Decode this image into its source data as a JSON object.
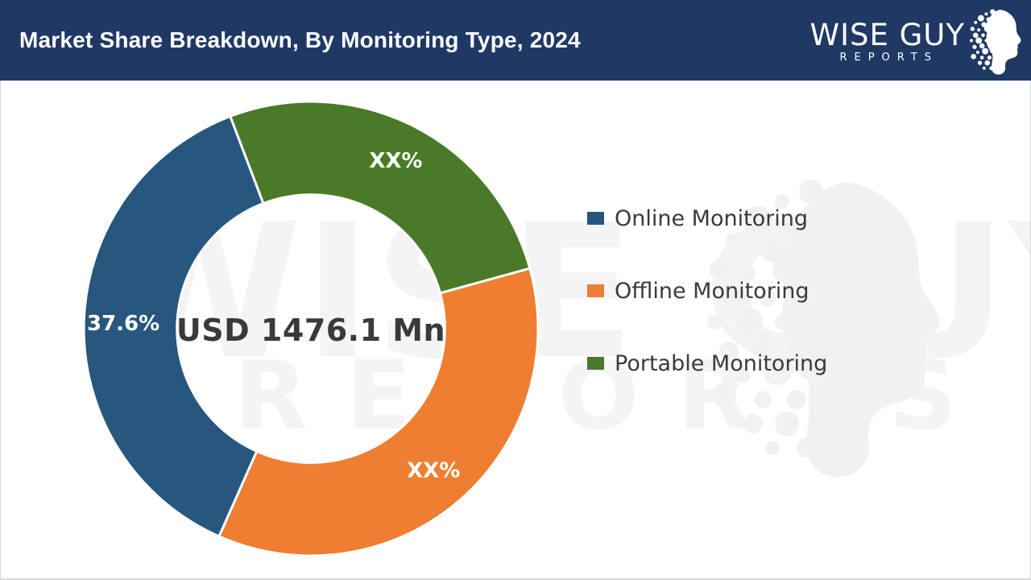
{
  "header": {
    "title": "Market Share Breakdown, By Monitoring Type, 2024",
    "bg_color": "#203864",
    "logo": {
      "line1": "WISE GUY",
      "line2": "REPORTS"
    }
  },
  "chart_data": {
    "type": "pie",
    "subtype": "donut",
    "title": "Market Share Breakdown, By Monitoring Type, 2024",
    "center_label": "USD 1476.1 Mn",
    "start_angle_deg": 110.8,
    "direction": "counterclockwise",
    "inner_radius_ratio": 0.59,
    "legend_position": "right",
    "segments": [
      {
        "name": "Online Monitoring",
        "value_pct": 37.6,
        "label": "37.6%",
        "color": "#27567f"
      },
      {
        "name": "Offline Monitoring",
        "value_pct": 35.9,
        "label": "XX%",
        "color": "#ee7e31"
      },
      {
        "name": "Portable Monitoring",
        "value_pct": 26.5,
        "label": "XX%",
        "color": "#4a7a28"
      }
    ]
  },
  "watermark": {
    "line1": "WISE GUY",
    "line2": "REPORTS"
  },
  "colors": {
    "header_bg": "#203864",
    "online": "#27567f",
    "offline": "#ee7e31",
    "portable": "#4a7a28",
    "center_text": "#3a3a3a",
    "legend_text": "#3a3a3a",
    "watermark": "#f4f4f5"
  }
}
